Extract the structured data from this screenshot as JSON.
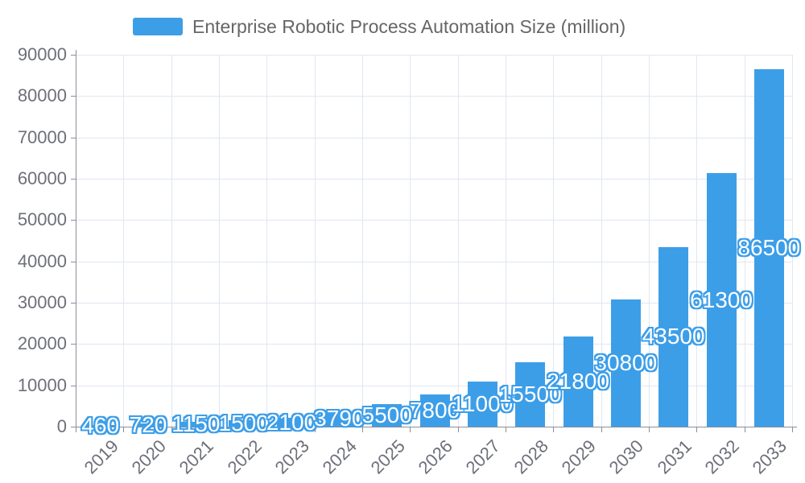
{
  "legend": {
    "label": "Enterprise Robotic Process Automation Size (million)"
  },
  "colors": {
    "bar": "#3D9EE8",
    "bar_label_text": "#FFFFFF",
    "legend_text": "#666666",
    "axis_label": "#6E7079",
    "grid_line": "#E0E6F1",
    "axis_line": "#8A8E99"
  },
  "chart_data": {
    "type": "bar",
    "title": "Enterprise Robotic Process Automation Size (million)",
    "series_name": "Enterprise Robotic Process Automation Size (million)",
    "categories": [
      "2019",
      "2020",
      "2021",
      "2022",
      "2023",
      "2024",
      "2025",
      "2026",
      "2027",
      "2028",
      "2029",
      "2030",
      "2031",
      "2032",
      "2033"
    ],
    "values": [
      460,
      720,
      1150,
      1500,
      2100,
      3790,
      5500,
      7800,
      11000,
      15500,
      21800,
      30800,
      43500,
      61300,
      86500
    ],
    "bar_value_labels": [
      "460",
      "720",
      "1150",
      "1500",
      "2100",
      "3790",
      "5500",
      "7800",
      "11000",
      "15500",
      "21800",
      "30800",
      "43500",
      "61300",
      "86500"
    ],
    "xlabel": "",
    "ylabel": "",
    "ylim": [
      0,
      90000
    ],
    "ytick_step": 10000,
    "y_tick_labels": [
      "0",
      "10000",
      "20000",
      "30000",
      "40000",
      "50000",
      "60000",
      "70000",
      "80000",
      "90000"
    ],
    "grid": true,
    "legend_position": "top-center",
    "bar_labels_visible": true,
    "bar_label_style": "white fill with bar-colored outline, centered inside bar"
  }
}
